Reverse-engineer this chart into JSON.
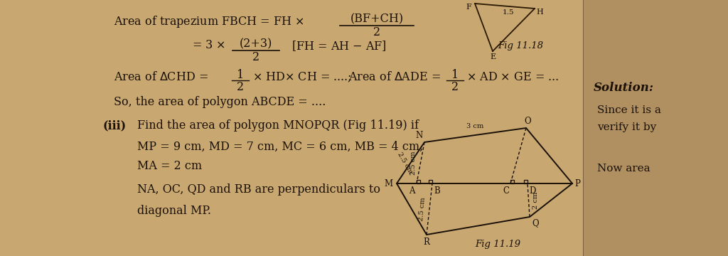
{
  "bg_color": "#C8A870",
  "bg_color_right": "#B09060",
  "text_color": "#1a1008",
  "fig_label18": "Fig 11.18",
  "fig_label19": "Fig 11.19",
  "solution_text": "Solution:",
  "since_text": "Since it is a",
  "verify_text": "verify it by",
  "now_text": "Now area"
}
